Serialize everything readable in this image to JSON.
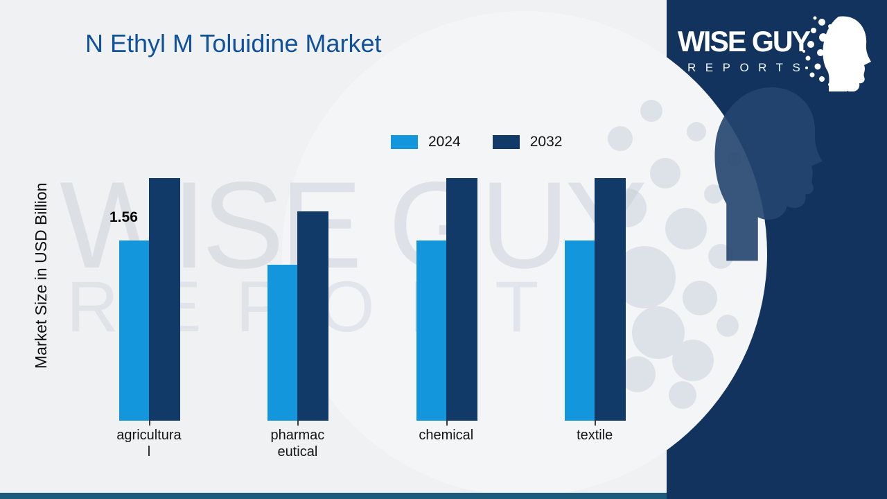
{
  "title": "N Ethyl M Toluidine Market",
  "brand": {
    "line1": "WISE GUY",
    "line2": "REPORTS"
  },
  "watermark": {
    "line1": "WISE GUY",
    "line2": "REPORTS"
  },
  "colors": {
    "title_blue": "#0f519c",
    "series_2024": "#1396dc",
    "series_2032": "#123a68",
    "panel_navy": "#12335e",
    "bottom_strip_teal": "#1c5b7d",
    "background": "#f0f1f2"
  },
  "chart_data": {
    "type": "bar",
    "title": "N Ethyl M Toluidine Market",
    "categories": [
      "agricultural",
      "pharmaceutical",
      "chemical",
      "textile"
    ],
    "category_display": [
      "agricultura\nl",
      "pharmac\neutical",
      "chemical",
      "textile"
    ],
    "series": [
      {
        "name": "2024",
        "color": "#1396dc",
        "values": [
          1.56,
          1.35,
          1.56,
          1.56
        ]
      },
      {
        "name": "2032",
        "color": "#123a68",
        "values": [
          2.1,
          1.81,
          2.1,
          2.1
        ]
      }
    ],
    "xlabel": "",
    "ylabel": "Market Size in USD Billion",
    "ylim": [
      0,
      2.26
    ],
    "grid": false,
    "legend_position": "top-center",
    "bar_labels": [
      {
        "series": "2024",
        "category": "agricultural",
        "text": "1.56"
      }
    ]
  }
}
